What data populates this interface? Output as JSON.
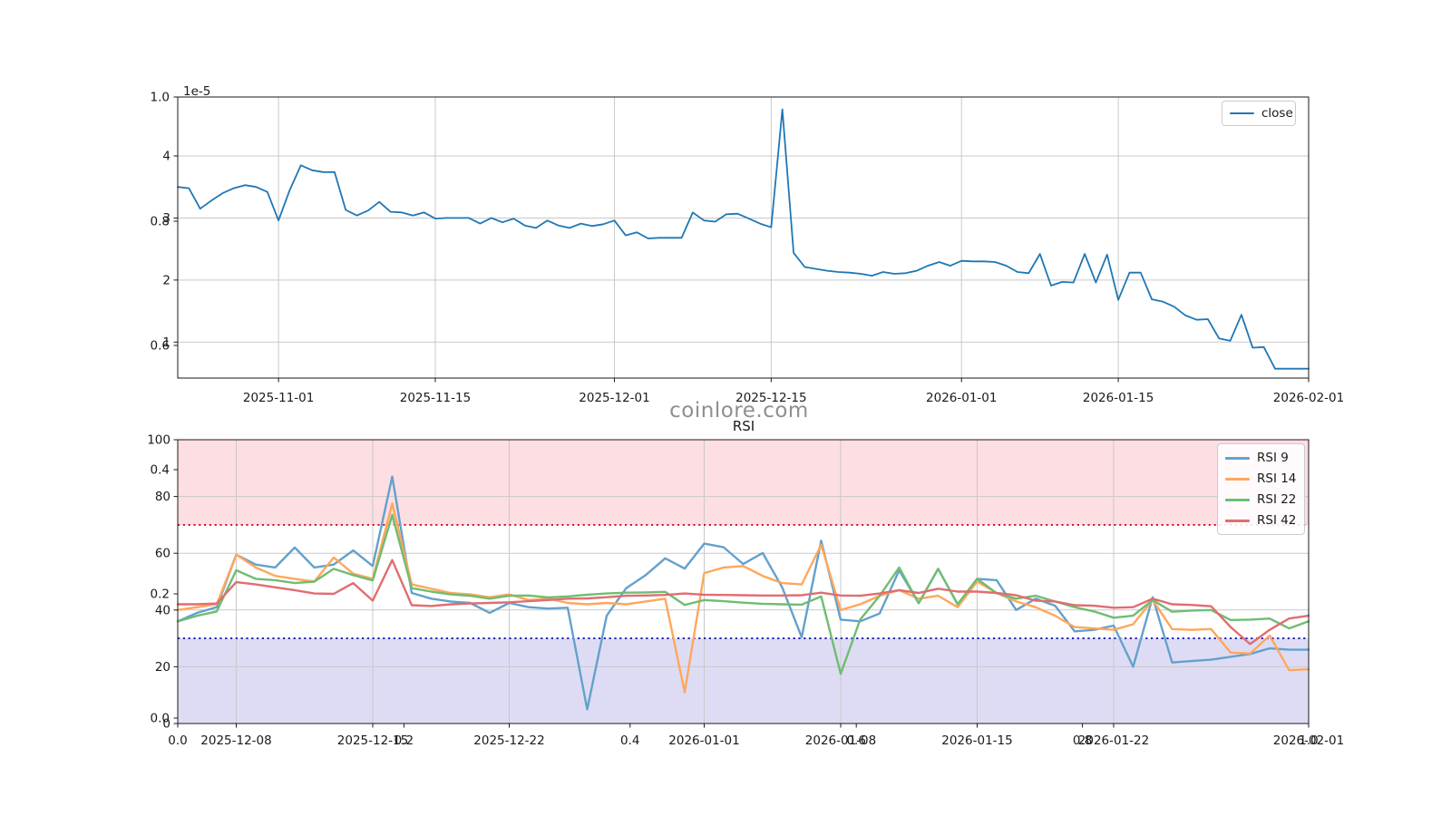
{
  "watermark": "coinlore.com",
  "rsi_title": "RSI",
  "overlay_axis": {
    "x_labels": [
      "0.0",
      "0.2",
      "0.4",
      "0.6",
      "0.8",
      "1.0"
    ],
    "y_labels": [
      "1.0",
      "0.8",
      "0.6",
      "0.4",
      "0.2",
      "0.0"
    ]
  },
  "chart_data": [
    {
      "type": "line",
      "name": "price-panel",
      "title": "",
      "legend_position": "upper right",
      "offset_label": "1e-5",
      "grid": true,
      "start_date": "2025-10-23",
      "ylim": [
        0.42,
        4.95
      ],
      "x_ticks": [
        {
          "day": 9,
          "label": "2025-11-01"
        },
        {
          "day": 23,
          "label": "2025-11-15"
        },
        {
          "day": 39,
          "label": "2025-12-01"
        },
        {
          "day": 53,
          "label": "2025-12-15"
        },
        {
          "day": 70,
          "label": "2026-01-01"
        },
        {
          "day": 84,
          "label": "2026-01-15"
        },
        {
          "day": 101,
          "label": "2026-02-01"
        }
      ],
      "y_ticks": [
        {
          "value": 4,
          "label": "4"
        },
        {
          "value": 3,
          "label": "3"
        },
        {
          "value": 2,
          "label": "2"
        },
        {
          "value": 1,
          "label": "1"
        }
      ],
      "series": [
        {
          "name": "close",
          "color": "#1f77b4",
          "width": 1.8,
          "values": [
            3.5,
            3.48,
            3.15,
            3.28,
            3.4,
            3.48,
            3.53,
            3.5,
            3.42,
            2.96,
            3.45,
            3.85,
            3.77,
            3.74,
            3.74,
            3.13,
            3.04,
            3.12,
            3.26,
            3.1,
            3.09,
            3.04,
            3.09,
            2.99,
            3.0,
            3.0,
            3.0,
            2.91,
            3.0,
            2.93,
            2.99,
            2.88,
            2.84,
            2.96,
            2.88,
            2.84,
            2.91,
            2.87,
            2.9,
            2.96,
            2.72,
            2.77,
            2.67,
            2.68,
            2.68,
            2.68,
            3.09,
            2.96,
            2.94,
            3.06,
            3.07,
            2.99,
            2.91,
            2.85,
            4.75,
            2.44,
            2.21,
            2.18,
            2.15,
            2.13,
            2.12,
            2.1,
            2.07,
            2.13,
            2.1,
            2.11,
            2.15,
            2.23,
            2.29,
            2.23,
            2.31,
            2.3,
            2.3,
            2.29,
            2.23,
            2.13,
            2.11,
            2.42,
            1.91,
            1.97,
            1.96,
            2.42,
            1.96,
            2.41,
            1.68,
            2.12,
            2.12,
            1.69,
            1.65,
            1.57,
            1.43,
            1.36,
            1.37,
            1.06,
            1.02,
            1.44,
            0.91,
            0.92,
            0.57,
            0.57,
            0.57,
            0.57
          ]
        }
      ]
    },
    {
      "type": "line",
      "name": "rsi-panel",
      "title": "RSI",
      "legend_position": "upper right",
      "grid": true,
      "start_date": "2025-12-05",
      "ylim": [
        0,
        100
      ],
      "x_ticks": [
        {
          "day": 3,
          "label": "2025-12-08"
        },
        {
          "day": 10,
          "label": "2025-12-15"
        },
        {
          "day": 17,
          "label": "2025-12-22"
        },
        {
          "day": 27,
          "label": "2026-01-01"
        },
        {
          "day": 34,
          "label": "2026-01-08"
        },
        {
          "day": 41,
          "label": "2026-01-15"
        },
        {
          "day": 48,
          "label": "2026-01-22"
        },
        {
          "day": 58,
          "label": "2026-02-01"
        }
      ],
      "y_ticks": [
        {
          "value": 100,
          "label": "100"
        },
        {
          "value": 80,
          "label": "80"
        },
        {
          "value": 60,
          "label": "60"
        },
        {
          "value": 40,
          "label": "40"
        },
        {
          "value": 20,
          "label": "20"
        },
        {
          "value": 0,
          "label": "0"
        }
      ],
      "zones": [
        {
          "from": 70,
          "to": 100,
          "color": "#fcdee3",
          "meaning": "overbought"
        },
        {
          "from": 0,
          "to": 30,
          "color": "#dedcf4",
          "meaning": "oversold"
        }
      ],
      "hlines": [
        {
          "value": 70,
          "color": "#cc1122",
          "style": "dotted"
        },
        {
          "value": 30,
          "color": "#1414b8",
          "style": "dotted"
        }
      ],
      "series": [
        {
          "name": "RSI 9",
          "color": "#64a1cc",
          "width": 2.4,
          "values": [
            36,
            39,
            41,
            59.5,
            56,
            55,
            62,
            55,
            56,
            61,
            55.5,
            87,
            46,
            44,
            43,
            42.5,
            39,
            42.5,
            41,
            40.5,
            40.8,
            5,
            38,
            47.7,
            52.3,
            58.2,
            54.6,
            63.4,
            62.1,
            56.2,
            60.1,
            48,
            30.4,
            64.4,
            36.6,
            36,
            38.8,
            54,
            42.4,
            54.5,
            42,
            51,
            50.5,
            40,
            44,
            41.5,
            32.5,
            33,
            34.5,
            20,
            44.5,
            21.5,
            22,
            22.5,
            23.5,
            24.5,
            26.5,
            26,
            26
          ]
        },
        {
          "name": "RSI 14",
          "color": "#ffa75c",
          "width": 2.4,
          "values": [
            40,
            41,
            42,
            59.5,
            55,
            52,
            51,
            50,
            58.5,
            52.8,
            51,
            77.5,
            49,
            47.5,
            46,
            45.5,
            44.5,
            45.5,
            43.5,
            44,
            42.5,
            42,
            42.5,
            42,
            43,
            44,
            11,
            53,
            55,
            55.5,
            52,
            49.5,
            49,
            63,
            40,
            42,
            45,
            47,
            44,
            45,
            41,
            50,
            46,
            43,
            41,
            38,
            34,
            33.5,
            33,
            35,
            43.5,
            33.3,
            33,
            33.3,
            25,
            24.7,
            31,
            18.8,
            19.1
          ]
        },
        {
          "name": "RSI 22",
          "color": "#6fbd72",
          "width": 2.4,
          "values": [
            36,
            38,
            39.5,
            54,
            51,
            50.5,
            49.5,
            50,
            54.5,
            52.3,
            50.4,
            73.5,
            47.7,
            46.5,
            45.5,
            45,
            44,
            45,
            45.1,
            44.4,
            44.8,
            45.4,
            45.8,
            46.1,
            46.2,
            46.4,
            41.8,
            43.5,
            43.1,
            42.6,
            42.2,
            42,
            41.9,
            44.8,
            17.5,
            36.6,
            45,
            55,
            42.4,
            54.5,
            42,
            51,
            45.9,
            44,
            45,
            43,
            41,
            39.5,
            37.3,
            38,
            43.5,
            39.4,
            39.8,
            40,
            36.5,
            36.6,
            37,
            33.5,
            36
          ]
        },
        {
          "name": "RSI 42",
          "color": "#e16d70",
          "width": 2.4,
          "values": [
            42,
            42,
            42.3,
            49.8,
            49,
            48,
            47,
            45.8,
            45.7,
            49.5,
            43.3,
            57.6,
            41.7,
            41.4,
            42,
            42.3,
            42.5,
            42.7,
            43.1,
            43.5,
            44,
            44.1,
            44.5,
            45,
            45.1,
            45.3,
            45.8,
            45.4,
            45.3,
            45.2,
            45.1,
            45.1,
            45.2,
            46.1,
            45.1,
            45,
            45.8,
            47,
            46,
            47.5,
            46.5,
            46.5,
            46,
            45.2,
            43.3,
            43,
            41.7,
            41.5,
            40.8,
            41,
            44,
            42,
            41.8,
            41.3,
            34,
            28,
            33,
            37,
            38
          ]
        }
      ]
    }
  ]
}
